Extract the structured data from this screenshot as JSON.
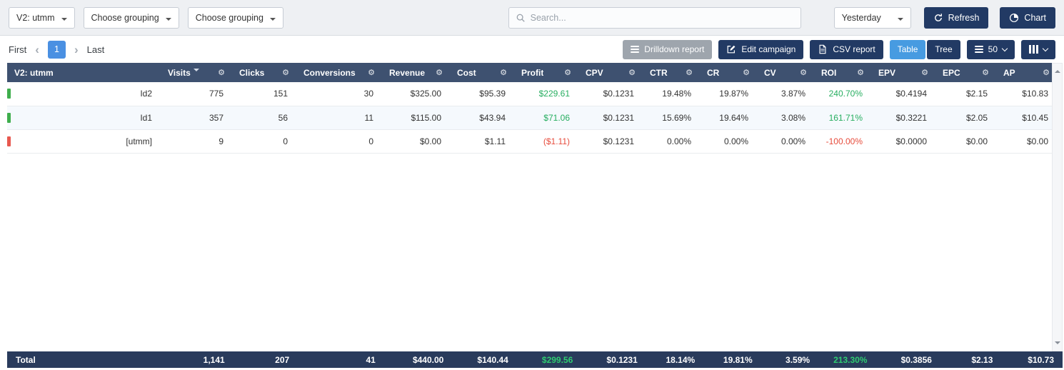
{
  "toolbar": {
    "campaign_select": "V2: utmm",
    "grouping_select_1": "Choose grouping",
    "grouping_select_2": "Choose grouping",
    "search_placeholder": "Search...",
    "date_select": "Yesterday",
    "refresh_label": "Refresh",
    "chart_label": "Chart"
  },
  "pagination": {
    "first_label": "First",
    "current_page": "1",
    "last_label": "Last"
  },
  "actions": {
    "drilldown_label": "Drilldown report",
    "edit_campaign_label": "Edit campaign",
    "csv_label": "CSV report",
    "table_label": "Table",
    "tree_label": "Tree",
    "rows_per_page": "50"
  },
  "table": {
    "name_column": "V2: utmm",
    "columns": [
      {
        "key": "visits",
        "label": "Visits",
        "sorted": true
      },
      {
        "key": "clicks",
        "label": "Clicks"
      },
      {
        "key": "conversions",
        "label": "Conversions"
      },
      {
        "key": "revenue",
        "label": "Revenue"
      },
      {
        "key": "cost",
        "label": "Cost"
      },
      {
        "key": "profit",
        "label": "Profit"
      },
      {
        "key": "cpv",
        "label": "CPV"
      },
      {
        "key": "ctr",
        "label": "CTR"
      },
      {
        "key": "cr",
        "label": "CR"
      },
      {
        "key": "cv",
        "label": "CV"
      },
      {
        "key": "roi",
        "label": "ROI"
      },
      {
        "key": "epv",
        "label": "EPV"
      },
      {
        "key": "epc",
        "label": "EPC"
      },
      {
        "key": "ap",
        "label": "AP"
      }
    ],
    "rows": [
      {
        "indicator": "green",
        "name": "Id2",
        "values": [
          "775",
          "151",
          "30",
          "$325.00",
          "$95.39",
          "$229.61",
          "$0.1231",
          "19.48%",
          "19.87%",
          "3.87%",
          "240.70%",
          "$0.4194",
          "$2.15",
          "$10.83"
        ],
        "value_colors": [
          null,
          null,
          null,
          null,
          null,
          "green",
          null,
          null,
          null,
          null,
          "green",
          null,
          null,
          null
        ]
      },
      {
        "indicator": "green",
        "name": "Id1",
        "values": [
          "357",
          "56",
          "11",
          "$115.00",
          "$43.94",
          "$71.06",
          "$0.1231",
          "15.69%",
          "19.64%",
          "3.08%",
          "161.71%",
          "$0.3221",
          "$2.05",
          "$10.45"
        ],
        "value_colors": [
          null,
          null,
          null,
          null,
          null,
          "green",
          null,
          null,
          null,
          null,
          "green",
          null,
          null,
          null
        ]
      },
      {
        "indicator": "red",
        "name": "[utmm]",
        "values": [
          "9",
          "0",
          "0",
          "$0.00",
          "$1.11",
          "($1.11)",
          "$0.1231",
          "0.00%",
          "0.00%",
          "0.00%",
          "-100.00%",
          "$0.0000",
          "$0.00",
          "$0.00"
        ],
        "value_colors": [
          null,
          null,
          null,
          null,
          null,
          "red",
          null,
          null,
          null,
          null,
          "red",
          null,
          null,
          null
        ]
      }
    ],
    "total": {
      "label": "Total",
      "values": [
        "1,141",
        "207",
        "41",
        "$440.00",
        "$140.44",
        "$299.56",
        "$0.1231",
        "18.14%",
        "19.81%",
        "3.59%",
        "213.30%",
        "$0.3856",
        "$2.13",
        "$10.73"
      ],
      "value_colors": [
        null,
        null,
        null,
        null,
        null,
        "green",
        null,
        null,
        null,
        null,
        "green",
        null,
        null,
        null
      ]
    }
  }
}
